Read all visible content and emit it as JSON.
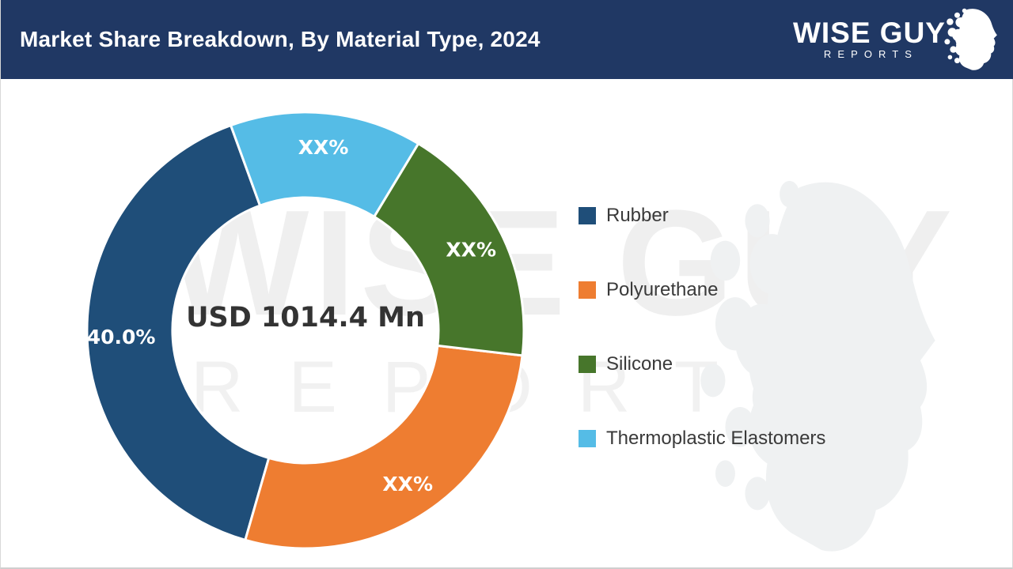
{
  "header": {
    "title": "Market Share Breakdown, By Material Type, 2024",
    "bg_color": "#203864",
    "logo": {
      "line1": "WISE GUY",
      "line2": "REPORTS"
    }
  },
  "watermark": {
    "line1": "WISE GUY",
    "line2": "REPORTS"
  },
  "chart_data": {
    "type": "donut",
    "title": "Market Share Breakdown, By Material Type, 2024",
    "center_label": "USD 1014.4 Mn",
    "units": "USD Mn",
    "rotation_deg": 340,
    "direction": "counterclockwise",
    "inner_radius_ratio": 0.6,
    "legend_position": "right",
    "segments": [
      {
        "name": "Rubber",
        "value_pct": 40.0,
        "slice_label": "40.0%",
        "color": "#1F4E79"
      },
      {
        "name": "Polyurethane",
        "value_pct": 27.6,
        "slice_label": "XX%",
        "color": "#EE7D31"
      },
      {
        "name": "Silicone",
        "value_pct": 18.2,
        "slice_label": "XX%",
        "color": "#47762B"
      },
      {
        "name": "Thermoplastic Elastomers",
        "value_pct": 14.2,
        "slice_label": "XX%",
        "color": "#55BCE6"
      }
    ]
  }
}
